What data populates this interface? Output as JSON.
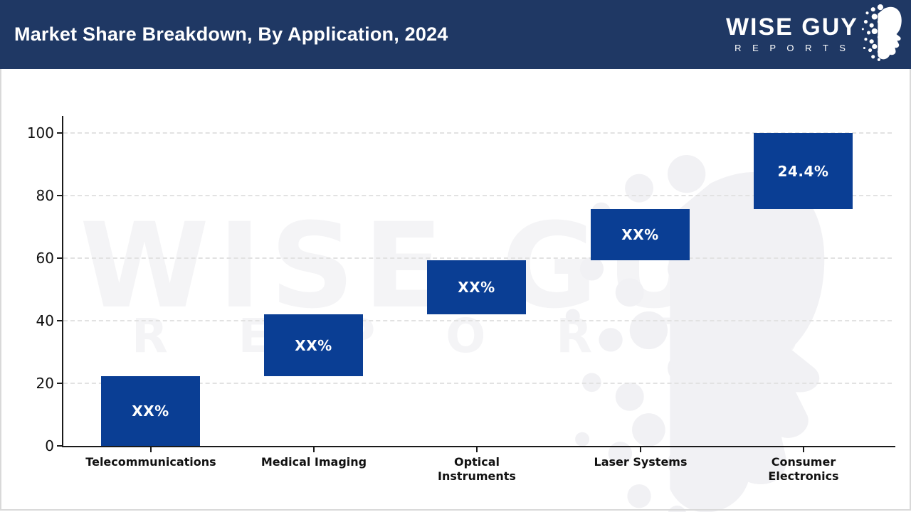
{
  "header": {
    "title": "Market Share Breakdown, By Application, 2024",
    "logo": {
      "line1": "WISE GUY",
      "line2": "R E P O R T S"
    }
  },
  "watermark": {
    "line1": "WISE GUY",
    "line2": "R E P O R T S"
  },
  "colors": {
    "header_bg": "#1f3864",
    "bar": "#0a3e94",
    "grid": "#e2e2e2",
    "axis": "#1a1a1a",
    "bar_label_text": "#ffffff",
    "watermark": "#f4f4f6"
  },
  "chart_data": {
    "type": "bar",
    "subtype": "waterfall",
    "title": "Market Share Breakdown, By Application, 2024",
    "categories": [
      "Telecommunications",
      "Medical Imaging",
      "Optical Instruments",
      "Laser Systems",
      "Consumer Electronics"
    ],
    "category_display": [
      "Telecommunications",
      "Medical Imaging",
      "Optical\nInstruments",
      "Laser Systems",
      "Consumer\nElectronics"
    ],
    "bars": [
      {
        "category": "Telecommunications",
        "label": "XX%",
        "start": 0,
        "end": 22.3,
        "value_est": 22.3
      },
      {
        "category": "Medical Imaging",
        "label": "XX%",
        "start": 22.3,
        "end": 42.1,
        "value_est": 19.8
      },
      {
        "category": "Optical Instruments",
        "label": "XX%",
        "start": 42.1,
        "end": 59.3,
        "value_est": 17.2
      },
      {
        "category": "Laser Systems",
        "label": "XX%",
        "start": 59.3,
        "end": 75.6,
        "value_est": 16.3
      },
      {
        "category": "Consumer Electronics",
        "label": "24.4%",
        "start": 75.6,
        "end": 100,
        "value_est": 24.4
      }
    ],
    "xlabel": "",
    "ylabel": "",
    "ylim": [
      0,
      100
    ],
    "yticks": [
      0,
      20,
      40,
      60,
      80,
      100
    ],
    "grid": "horizontal-dashed",
    "legend": "none",
    "bar_color": "#0a3e94"
  }
}
